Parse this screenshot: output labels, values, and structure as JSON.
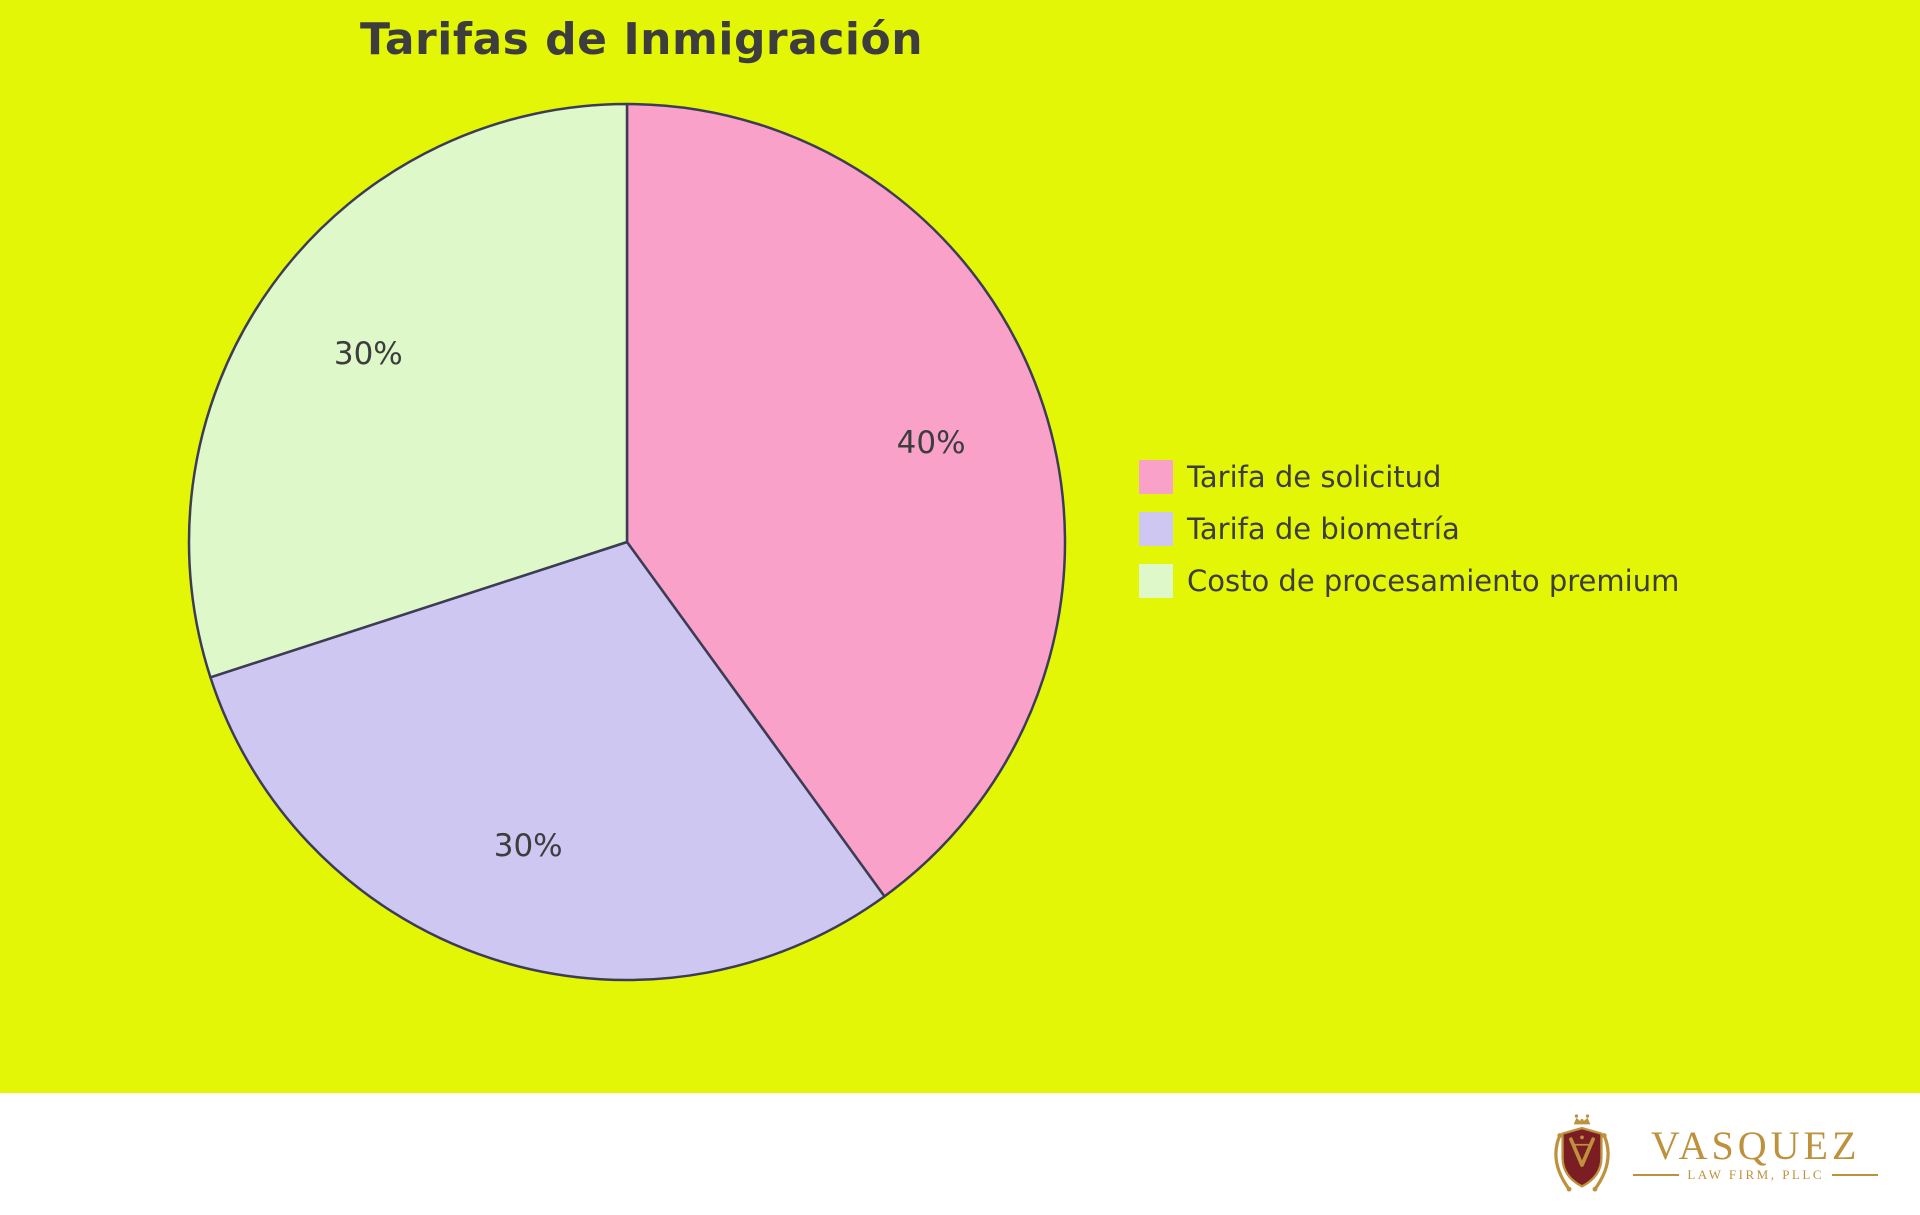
{
  "chart_data": {
    "type": "pie",
    "title": "Tarifas de Inmigración",
    "labels": [
      "Tarifa de solicitud",
      "Tarifa de biometría",
      "Costo de procesamiento premium"
    ],
    "values": [
      40,
      30,
      30
    ],
    "percent_labels": [
      "40%",
      "30%",
      "30%"
    ],
    "colors": [
      "#F9A1C8",
      "#CDC7F2",
      "#DFF8C9"
    ],
    "slice_stroke_color": "#3C3C55",
    "background_color": "#E3F606",
    "legend_position": "right",
    "start_angle_deg": -90,
    "direction": "clockwise"
  },
  "footer": {
    "logo": {
      "name": "VASQUEZ",
      "subtitle": "LAW FIRM, PLLC",
      "gold_color": "#BE913C",
      "maroon_color": "#7A1E24",
      "crest_icon": "law-firm-crest-icon"
    }
  }
}
